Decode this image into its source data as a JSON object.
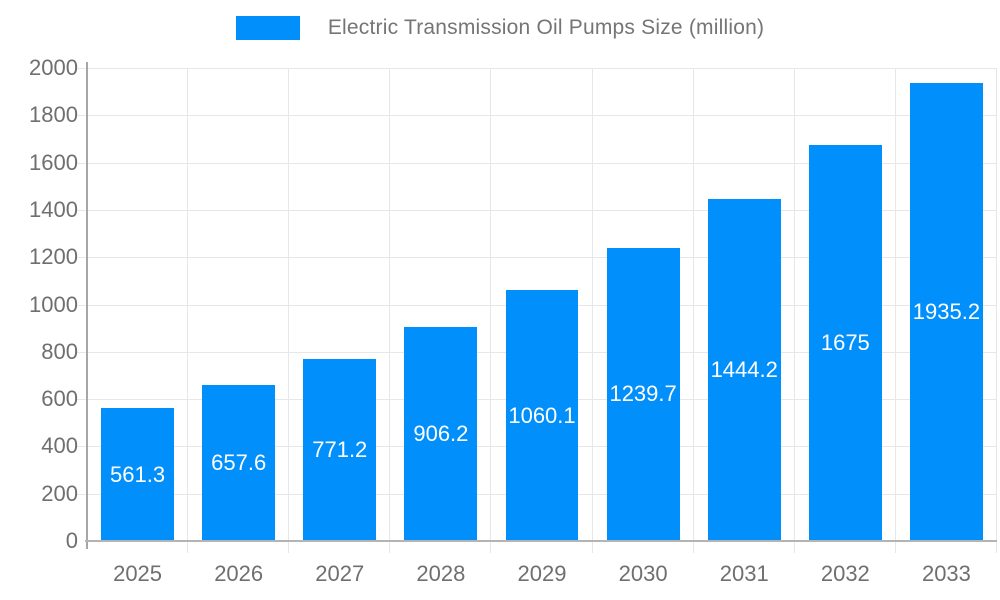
{
  "legend": {
    "items": [
      {
        "label": "Electric Transmission Oil Pumps Size (million)",
        "color": "#008FFB"
      }
    ]
  },
  "chart_data": {
    "type": "bar",
    "title": "Electric Transmission Oil Pumps Size (million)",
    "categories": [
      "2025",
      "2026",
      "2027",
      "2028",
      "2029",
      "2030",
      "2031",
      "2032",
      "2033"
    ],
    "values": [
      561.3,
      657.6,
      771.2,
      906.2,
      1060.1,
      1239.7,
      1444.2,
      1675,
      1935.2
    ],
    "value_labels": [
      "561.3",
      "657.6",
      "771.2",
      "906.2",
      "1060.1",
      "1239.7",
      "1444.2",
      "1675",
      "1935.2"
    ],
    "xlabel": "",
    "ylabel": "",
    "ylim": [
      0,
      2000
    ],
    "yticks": [
      0,
      200,
      400,
      600,
      800,
      1000,
      1200,
      1400,
      1600,
      1800,
      2000
    ],
    "grid": true,
    "legend_position": "top",
    "value_labels_position": "center-inside",
    "colors": {
      "bar": "#008FFB",
      "value_label": "#ffffff",
      "axis_text": "#6f6f6f",
      "legend_text": "#757575",
      "gridline": "#e7e7e7",
      "axis_line": "#a6a6a6"
    }
  }
}
